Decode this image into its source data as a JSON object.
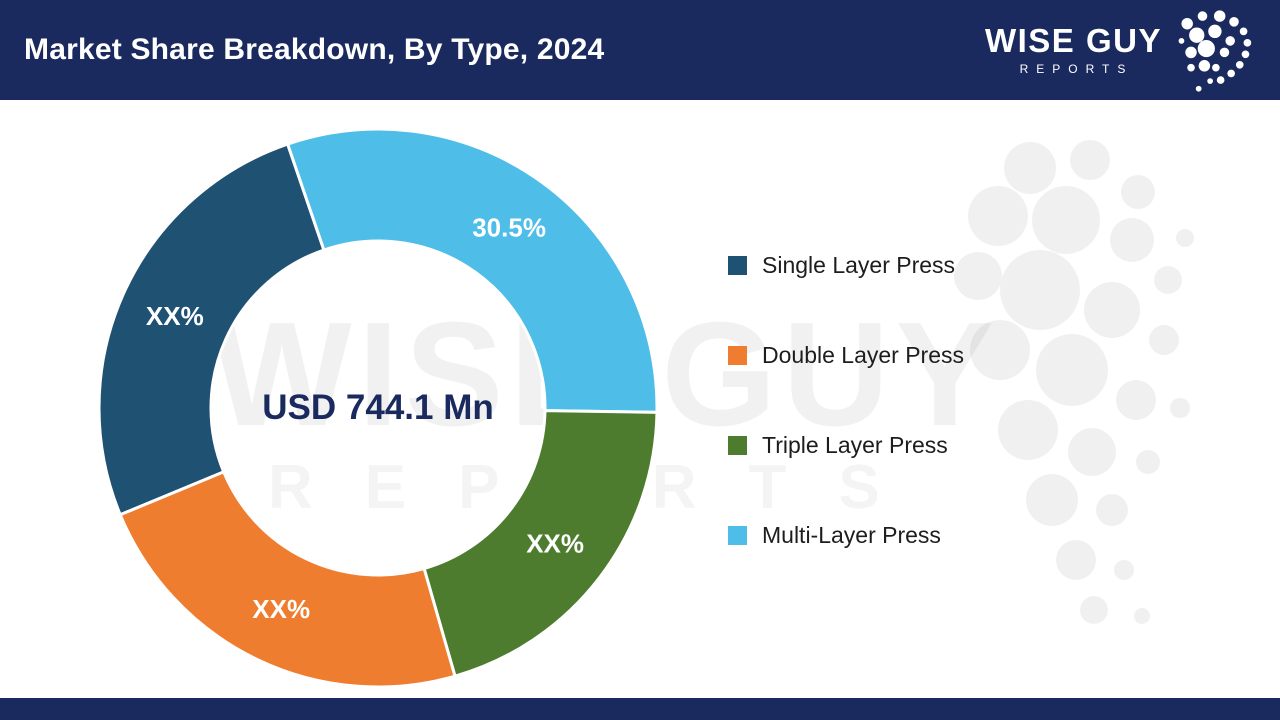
{
  "header": {
    "title": "Market Share Breakdown, By Type, 2024",
    "logo_line1": "WISE GUY",
    "logo_line2": "REPORTS"
  },
  "watermark": {
    "line1": "WISE GUY",
    "line2": "REPORTS"
  },
  "theme": {
    "bar_color": "#1a2a5e",
    "background": "#ffffff",
    "center_text_color": "#1a2a5e",
    "legend_text_color": "#1d1d1d"
  },
  "chart_data": {
    "type": "pie",
    "subtype": "donut",
    "title": "Market Share Breakdown, By Type, 2024",
    "center_label": "USD 744.1 Mn",
    "start_angle_deg": 247.5,
    "legend_position": "right",
    "segments": [
      {
        "label": "Single Layer Press",
        "display_value": "XX%",
        "value": 26.0,
        "color": "#1f5173"
      },
      {
        "label": "Multi-Layer Press",
        "display_value": "30.5%",
        "value": 30.5,
        "color": "#4ebde8"
      },
      {
        "label": "Triple Layer Press",
        "display_value": "XX%",
        "value": 20.3,
        "color": "#4d7c2e"
      },
      {
        "label": "Double Layer Press",
        "display_value": "XX%",
        "value": 23.2,
        "color": "#ee7d2f"
      }
    ],
    "legend": [
      {
        "label": "Single Layer Press",
        "color": "#1f5173"
      },
      {
        "label": "Double Layer Press",
        "color": "#ee7d2f"
      },
      {
        "label": "Triple Layer Press",
        "color": "#4d7c2e"
      },
      {
        "label": "Multi-Layer Press",
        "color": "#4ebde8"
      }
    ]
  }
}
